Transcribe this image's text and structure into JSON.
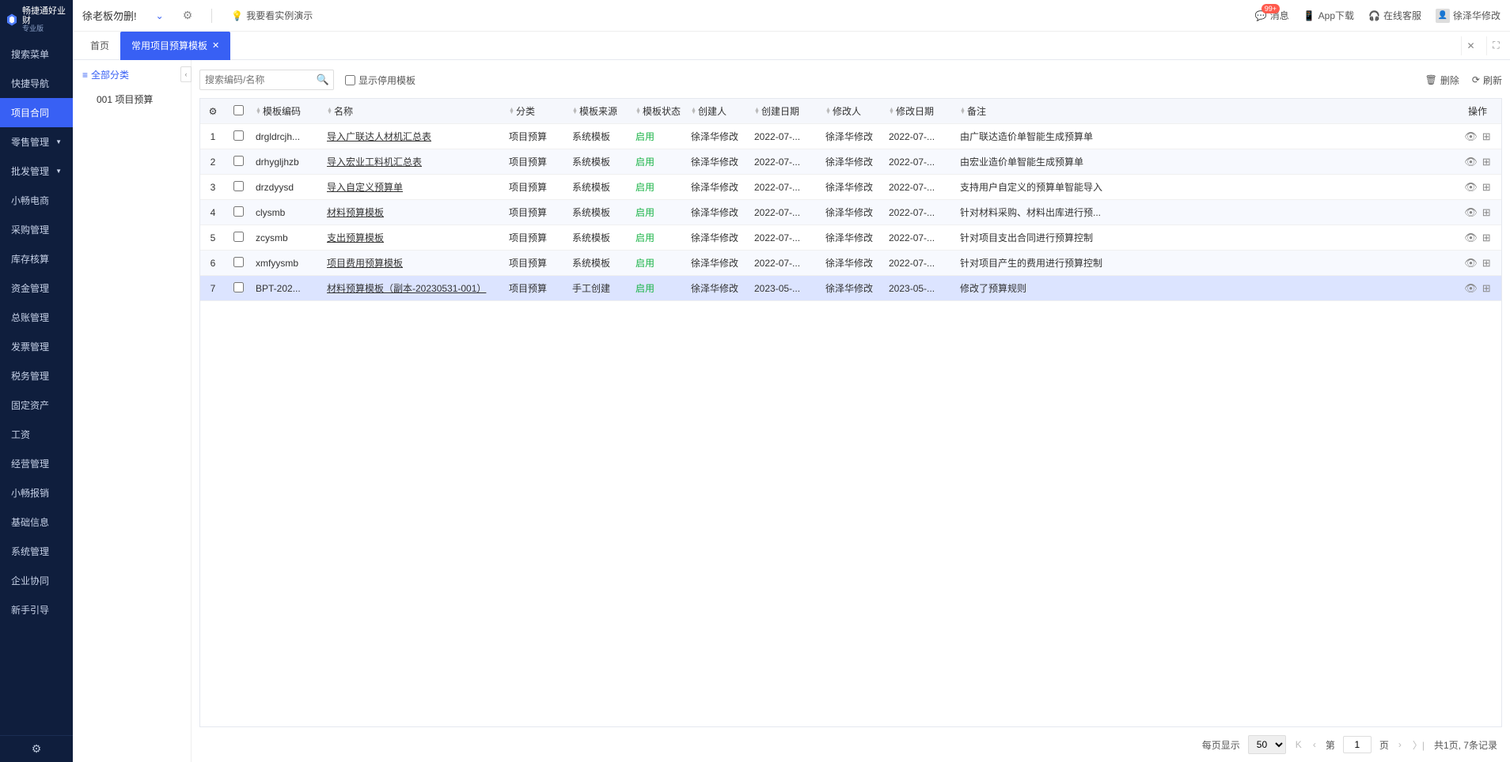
{
  "brand": {
    "name": "畅捷通好业财",
    "edition": "专业版"
  },
  "sidebar": {
    "items": [
      {
        "label": "搜索菜单",
        "caret": false
      },
      {
        "label": "快捷导航",
        "caret": false
      },
      {
        "label": "项目合同",
        "caret": false,
        "active": true
      },
      {
        "label": "零售管理",
        "caret": true
      },
      {
        "label": "批发管理",
        "caret": true
      },
      {
        "label": "小畅电商",
        "caret": false
      },
      {
        "label": "采购管理",
        "caret": false
      },
      {
        "label": "库存核算",
        "caret": false
      },
      {
        "label": "资金管理",
        "caret": false
      },
      {
        "label": "总账管理",
        "caret": false
      },
      {
        "label": "发票管理",
        "caret": false
      },
      {
        "label": "税务管理",
        "caret": false
      },
      {
        "label": "固定资产",
        "caret": false
      },
      {
        "label": "工资",
        "caret": false
      },
      {
        "label": "经营管理",
        "caret": false
      },
      {
        "label": "小畅报销",
        "caret": false
      },
      {
        "label": "基础信息",
        "caret": false
      },
      {
        "label": "系统管理",
        "caret": false
      },
      {
        "label": "企业协同",
        "caret": false
      },
      {
        "label": "新手引导",
        "caret": false
      }
    ]
  },
  "topbar": {
    "title": "徐老板勿删!",
    "demo": "我要看实例演示",
    "msg": "消息",
    "msg_badge": "99+",
    "app": "App下载",
    "cs": "在线客服",
    "user": "徐泽华修改"
  },
  "tabs": {
    "home": "首页",
    "active": "常用项目预算模板"
  },
  "category": {
    "header": "全部分类",
    "item1": "001 项目预算"
  },
  "toolbar": {
    "search_placeholder": "搜索编码/名称",
    "show_disabled": "显示停用模板",
    "delete": "删除",
    "refresh": "刷新"
  },
  "columns": {
    "code": "模板编码",
    "name": "名称",
    "category": "分类",
    "source": "模板来源",
    "status": "模板状态",
    "creator": "创建人",
    "cdate": "创建日期",
    "modifier": "修改人",
    "mdate": "修改日期",
    "remark": "备注",
    "ops": "操作"
  },
  "rows": [
    {
      "n": "1",
      "code": "drgldrcjh...",
      "name": "导入广联达人材机汇总表",
      "cat": "项目预算",
      "src": "系统模板",
      "status": "启用",
      "creator": "徐泽华修改",
      "cdate": "2022-07-...",
      "modifier": "徐泽华修改",
      "mdate": "2022-07-...",
      "remark": "由广联达造价单智能生成预算单"
    },
    {
      "n": "2",
      "code": "drhygljhzb",
      "name": "导入宏业工料机汇总表",
      "cat": "项目预算",
      "src": "系统模板",
      "status": "启用",
      "creator": "徐泽华修改",
      "cdate": "2022-07-...",
      "modifier": "徐泽华修改",
      "mdate": "2022-07-...",
      "remark": "由宏业造价单智能生成预算单"
    },
    {
      "n": "3",
      "code": "drzdyysd",
      "name": "导入自定义预算单",
      "cat": "项目预算",
      "src": "系统模板",
      "status": "启用",
      "creator": "徐泽华修改",
      "cdate": "2022-07-...",
      "modifier": "徐泽华修改",
      "mdate": "2022-07-...",
      "remark": "支持用户自定义的预算单智能导入"
    },
    {
      "n": "4",
      "code": "clysmb",
      "name": "材料预算模板",
      "cat": "项目预算",
      "src": "系统模板",
      "status": "启用",
      "creator": "徐泽华修改",
      "cdate": "2022-07-...",
      "modifier": "徐泽华修改",
      "mdate": "2022-07-...",
      "remark": "针对材料采购、材料出库进行预..."
    },
    {
      "n": "5",
      "code": "zcysmb",
      "name": "支出预算模板",
      "cat": "项目预算",
      "src": "系统模板",
      "status": "启用",
      "creator": "徐泽华修改",
      "cdate": "2022-07-...",
      "modifier": "徐泽华修改",
      "mdate": "2022-07-...",
      "remark": "针对项目支出合同进行预算控制"
    },
    {
      "n": "6",
      "code": "xmfyysmb",
      "name": "项目费用预算模板",
      "cat": "项目预算",
      "src": "系统模板",
      "status": "启用",
      "creator": "徐泽华修改",
      "cdate": "2022-07-...",
      "modifier": "徐泽华修改",
      "mdate": "2022-07-...",
      "remark": "针对项目产生的费用进行预算控制"
    },
    {
      "n": "7",
      "code": "BPT-202...",
      "name": "材料预算模板（副本-20230531-001）",
      "cat": "项目预算",
      "src": "手工创建",
      "status": "启用",
      "creator": "徐泽华修改",
      "cdate": "2023-05-...",
      "modifier": "徐泽华修改",
      "mdate": "2023-05-...",
      "remark": "修改了预算规则",
      "selected": true
    }
  ],
  "pager": {
    "per_label": "每页显示",
    "per_value": "50",
    "page_prefix": "第",
    "page_value": "1",
    "page_suffix": "页",
    "total": "共1页, 7条记录"
  },
  "colors": {
    "sidebar_bg": "#0f1e3d",
    "accent": "#3860f4",
    "enabled": "#19b346",
    "badge": "#ff5a4d"
  }
}
